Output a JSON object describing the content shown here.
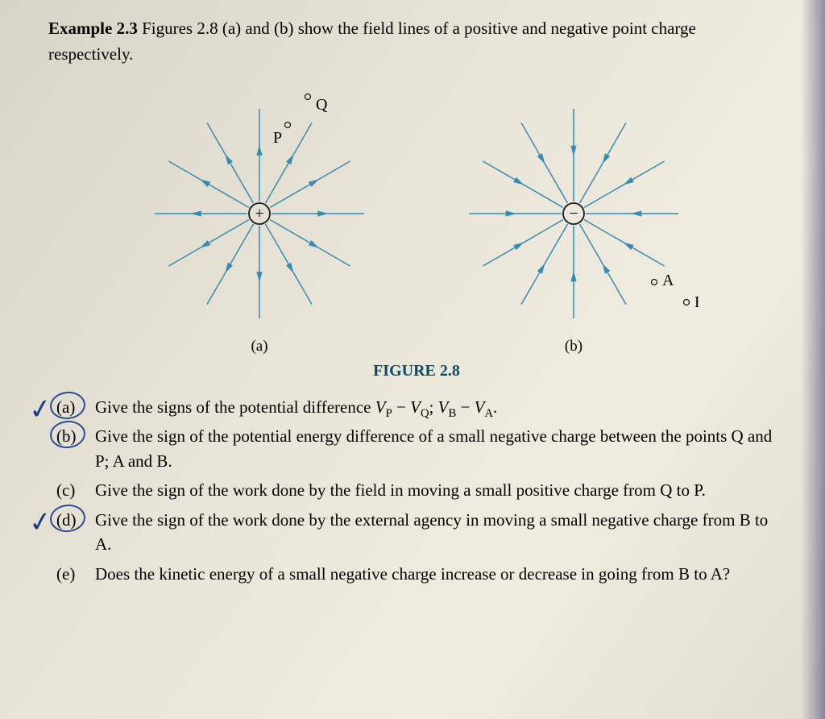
{
  "intro": {
    "lead": "Example 2.3",
    "rest": "  Figures 2.8 (a) and (b) show the field lines of a positive and negative point charge respectively."
  },
  "figure": {
    "line_color": "#3a8ab0",
    "text_color": "#1a1a1a",
    "charge_border": "#1a1a1a",
    "label_a": "(a)",
    "label_b": "(b)",
    "title": "FIGURE 2.8",
    "pos": {
      "sign": "+",
      "point_P": "P",
      "point_Q": "Q"
    },
    "neg": {
      "sign": "−",
      "point_A": "A",
      "point_B": "B"
    }
  },
  "questions": {
    "a": {
      "tag": "(a)",
      "text_pre": "Give the signs of the potential difference ",
      "vp": "V",
      "pSub": "P",
      "minus": " − ",
      "vq": "V",
      "qSub": "Q",
      "semi": "; ",
      "vb": "V",
      "bSub": "B",
      "minus2": " − ",
      "va": "V",
      "aSub": "A",
      "dot": "."
    },
    "b": {
      "tag": "(b)",
      "text": "Give the sign of the potential energy difference of a small negative charge between the points Q and P; A and B."
    },
    "c": {
      "tag": "(c)",
      "text": "Give the sign of the work done by the field in moving a small positive charge from Q to P."
    },
    "d": {
      "tag": "(d)",
      "text": "Give the sign of the work done by the external agency in moving a small negative charge from B to A."
    },
    "e": {
      "tag": "(e)",
      "text": "Does the kinetic energy of a small negative charge increase or decrease in going from B to A?"
    }
  },
  "colors": {
    "pen": "#1a3a8a",
    "title": "#0a4a6a"
  }
}
